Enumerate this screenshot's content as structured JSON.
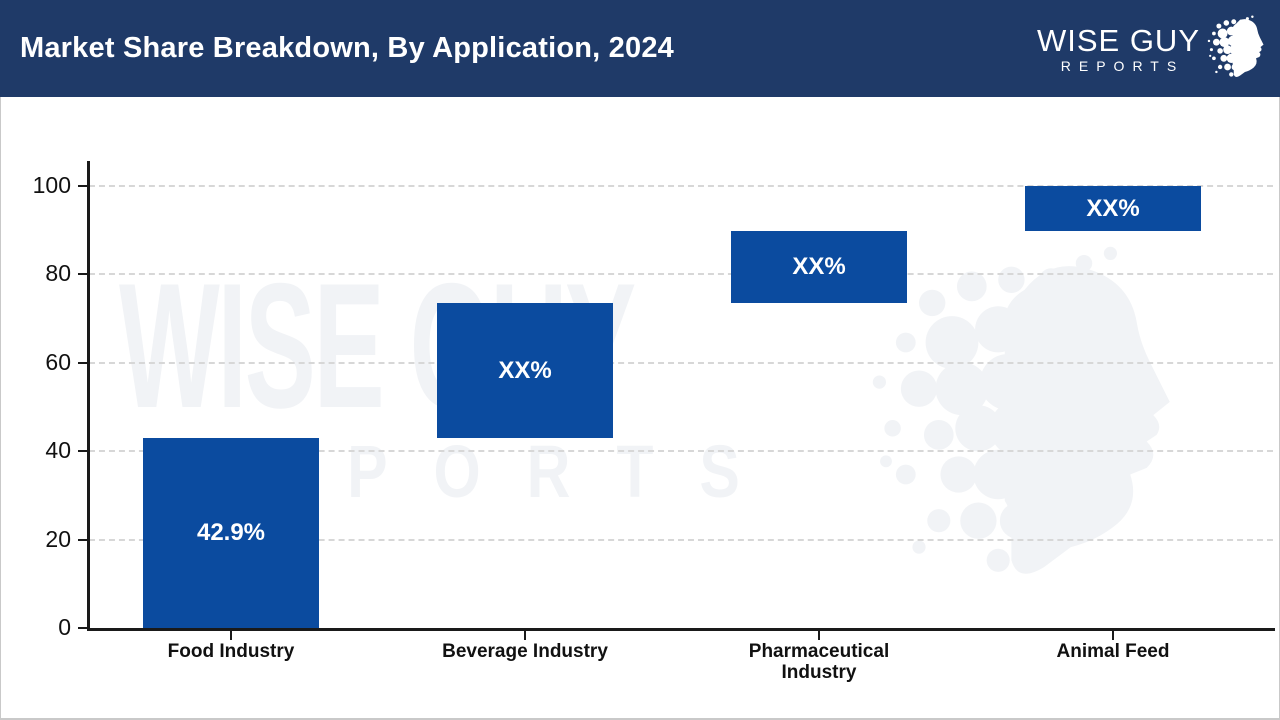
{
  "header": {
    "title": "Market Share Breakdown, By Application, 2024",
    "logo": {
      "line1": "WISE GUY",
      "line2": "REPORTS"
    }
  },
  "watermark": {
    "line1": "WISE GUY",
    "line2": "REPORTS"
  },
  "colors": {
    "header_bg": "#1F3A68",
    "bar": "#0B4B9F",
    "grid": "#d7d7d7",
    "axis": "#1a1a1a",
    "watermark": "#f1f3f6",
    "frame_border": "#c9c9c9",
    "bar_label": "#ffffff"
  },
  "chart_data": {
    "type": "bar",
    "subtype": "floating-waterfall",
    "title": "Market Share Breakdown, By Application, 2024",
    "categories": [
      "Food Industry",
      "Beverage Industry",
      "Pharmaceutical\nIndustry",
      "Animal Feed"
    ],
    "segments": [
      {
        "category": "Food Industry",
        "start": 0,
        "end": 42.9,
        "label": "42.9%"
      },
      {
        "category": "Beverage Industry",
        "start": 42.9,
        "end": 73.5,
        "label": "XX%"
      },
      {
        "category": "Pharmaceutical Industry",
        "start": 73.5,
        "end": 89.8,
        "label": "XX%"
      },
      {
        "category": "Animal Feed",
        "start": 89.8,
        "end": 100,
        "label": "XX%"
      }
    ],
    "yticks": [
      0,
      20,
      40,
      60,
      80,
      100
    ],
    "ylim": [
      0,
      104.5
    ],
    "xlabel": "",
    "ylabel": "",
    "grid": "horizontal-dashed",
    "legend": "none",
    "bar_color": "#0B4B9F",
    "bar_label_color": "#ffffff"
  }
}
